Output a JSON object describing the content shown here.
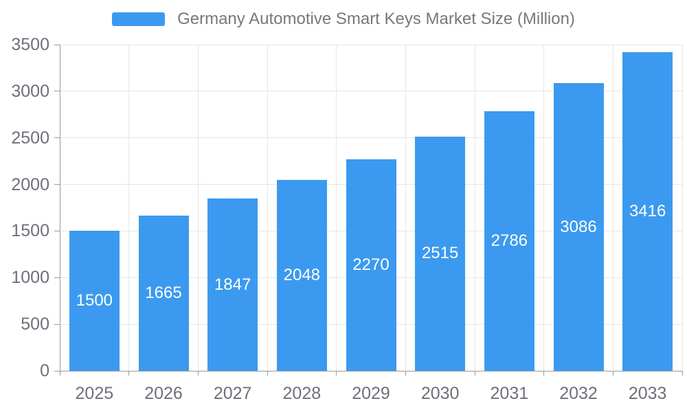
{
  "legend": {
    "label": "Germany Automotive Smart Keys Market Size (Million)"
  },
  "chart_data": {
    "type": "bar",
    "title": "Germany Automotive Smart Keys Market Size (Million)",
    "categories": [
      "2025",
      "2026",
      "2027",
      "2028",
      "2029",
      "2030",
      "2031",
      "2032",
      "2033"
    ],
    "values": [
      1500,
      1665,
      1847,
      2048,
      2270,
      2515,
      2786,
      3086,
      3416
    ],
    "xlabel": "",
    "ylabel": "",
    "ylim": [
      0,
      3500
    ],
    "yticks": [
      0,
      500,
      1000,
      1500,
      2000,
      2500,
      3000,
      3500
    ],
    "grid": true,
    "legend_position": "top",
    "value_labels": "inside-center"
  },
  "colors": {
    "bar": "#3B9AEF",
    "bar_value_label": "#FFFFFF",
    "axis_label": "#6E7079",
    "legend_text": "#787878",
    "gridline": "#E6E6E6",
    "axis_line": "#999999",
    "background": "#FFFFFF"
  }
}
